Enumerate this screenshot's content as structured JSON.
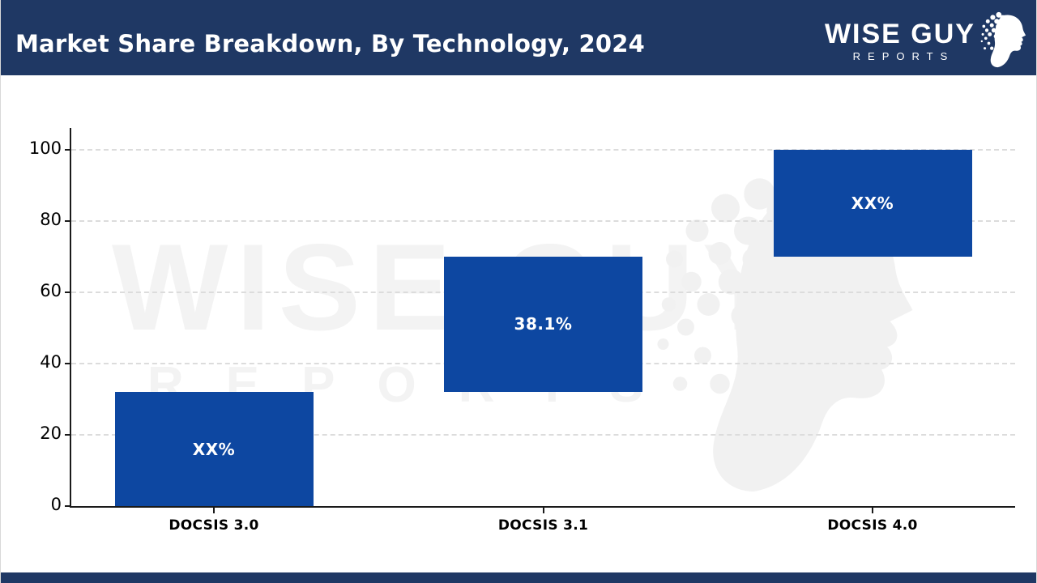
{
  "header": {
    "title": "Market Share Breakdown, By Technology, 2024",
    "bg_color": "#1f3864",
    "logo": {
      "line1": "WISE GUY",
      "line2": "REPORTS"
    }
  },
  "watermark": {
    "line1": "WISE GUY",
    "line2": "REPORTS"
  },
  "footer": {
    "bg_color": "#1f3864"
  },
  "chart_data": {
    "type": "bar",
    "variant": "floating-waterfall",
    "title": "Market Share Breakdown, By Technology, 2024",
    "categories": [
      "DOCSIS 3.0",
      "DOCSIS 3.1",
      "DOCSIS 4.0"
    ],
    "segments": [
      {
        "category": "DOCSIS 3.0",
        "start": 0,
        "end": 32,
        "label": "XX%"
      },
      {
        "category": "DOCSIS 3.1",
        "start": 32,
        "end": 70.1,
        "label": "38.1%"
      },
      {
        "category": "DOCSIS 4.0",
        "start": 70.1,
        "end": 100,
        "label": "XX%"
      }
    ],
    "xlabel": "",
    "ylabel": "",
    "y_ticks": [
      0,
      20,
      40,
      60,
      80,
      100
    ],
    "ylim": [
      0,
      105
    ],
    "grid": "horizontal-dashed",
    "legend": "none",
    "colors": {
      "bar": "#0d47a1",
      "grid": "#dcdcdc",
      "axis": "#1a1a1a",
      "bar_label_text": "#ffffff",
      "header_bg": "#1f3864"
    }
  }
}
